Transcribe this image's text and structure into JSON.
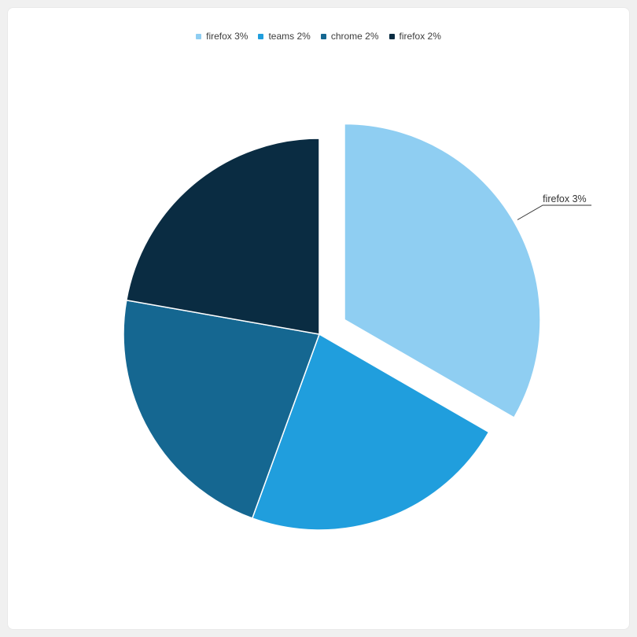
{
  "page": {
    "background_color": "#f0f0f0",
    "card_background_color": "#ffffff"
  },
  "chart_data": {
    "type": "pie",
    "title": "",
    "legend_position": "top",
    "direction": "clockwise",
    "start_angle_deg": 0,
    "series": [
      {
        "name": "firefox-3",
        "label": "firefox 3%",
        "value": 3,
        "color": "#8fcef2",
        "exploded": true
      },
      {
        "name": "teams-2",
        "label": "teams 2%",
        "value": 2,
        "color": "#209edd",
        "exploded": false
      },
      {
        "name": "chrome-2",
        "label": "chrome 2%",
        "value": 2,
        "color": "#156791",
        "exploded": false
      },
      {
        "name": "firefox-2",
        "label": "firefox 2%",
        "value": 2,
        "color": "#0a2c42",
        "exploded": false
      }
    ],
    "annotation": {
      "text": "firefox 3%",
      "target_slice_index": 0
    },
    "slice_border_color": "#ffffff",
    "leader_line_color": "#333333",
    "legend_text_color": "#3d3d3d",
    "label_text_color": "#333333"
  }
}
